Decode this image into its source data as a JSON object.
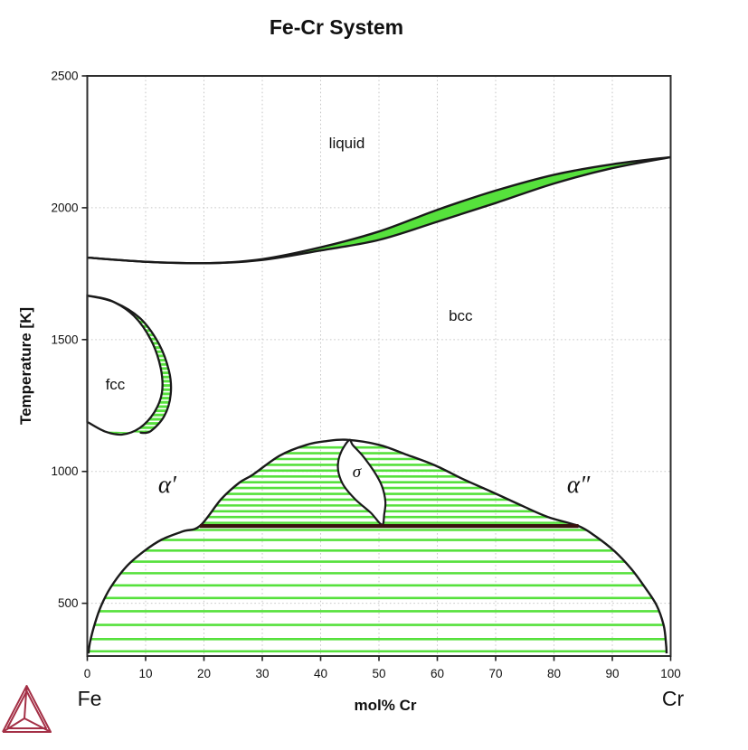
{
  "watermark": {
    "logo_icon": "thermo-calc-triangle-logo",
    "logo_color": "#a43046"
  },
  "chart_data": {
    "type": "line",
    "subtype": "binary-phase-diagram",
    "title": "Fe-Cr System",
    "xlabel": "mol% Cr",
    "ylabel": "Temperature [K]",
    "x_endmember_left": "Fe",
    "x_endmember_right": "Cr",
    "xlim": [
      0,
      100
    ],
    "ylim": [
      300,
      2500
    ],
    "x_ticks": [
      0,
      10,
      20,
      30,
      40,
      50,
      60,
      70,
      80,
      90,
      100
    ],
    "y_ticks": [
      500,
      1000,
      1500,
      2000,
      2500
    ],
    "grid": true,
    "legend_position": "none",
    "colors": {
      "two_phase_green": "#56e13c",
      "phase_boundary": "#1a1a1a",
      "eutectoid_line": "#38120c",
      "gridline": "#c7c7c7",
      "frame": "#2e2e2e"
    },
    "phase_labels": [
      {
        "text": "liquid",
        "x": 44.5,
        "y": 2246,
        "kind": "sans",
        "size": 17
      },
      {
        "text": "bcc",
        "x": 64,
        "y": 1592,
        "kind": "sans",
        "size": 17
      },
      {
        "text": "fcc",
        "x": 4.8,
        "y": 1332,
        "kind": "sans",
        "size": 17
      },
      {
        "text": "α′",
        "x": 13.7,
        "y": 952,
        "kind": "greek",
        "size": 27
      },
      {
        "text": "σ",
        "x": 46.2,
        "y": 1002,
        "kind": "greek",
        "size": 19
      },
      {
        "text": "α″",
        "x": 84.2,
        "y": 952,
        "kind": "greek",
        "size": 27
      }
    ],
    "series": [
      {
        "name": "liquidus",
        "points": [
          [
            0,
            1811
          ],
          [
            10,
            1795
          ],
          [
            21,
            1790
          ],
          [
            30,
            1805
          ],
          [
            40,
            1850
          ],
          [
            50,
            1910
          ],
          [
            60,
            1992
          ],
          [
            70,
            2065
          ],
          [
            80,
            2125
          ],
          [
            90,
            2165
          ],
          [
            100,
            2192
          ]
        ]
      },
      {
        "name": "solidus",
        "points": [
          [
            0,
            1811
          ],
          [
            10,
            1795
          ],
          [
            21,
            1790
          ],
          [
            30,
            1802
          ],
          [
            40,
            1838
          ],
          [
            50,
            1878
          ],
          [
            60,
            1947
          ],
          [
            70,
            2018
          ],
          [
            80,
            2092
          ],
          [
            90,
            2150
          ],
          [
            100,
            2192
          ]
        ]
      },
      {
        "name": "fcc_gamma_loop_inner",
        "points": [
          [
            0,
            1667
          ],
          [
            4,
            1648
          ],
          [
            8,
            1590
          ],
          [
            11,
            1495
          ],
          [
            12.6,
            1390
          ],
          [
            12.8,
            1300
          ],
          [
            11.5,
            1225
          ],
          [
            9,
            1165
          ],
          [
            6,
            1140
          ],
          [
            3,
            1152
          ],
          [
            0,
            1188
          ]
        ]
      },
      {
        "name": "fcc_gamma_loop_outer",
        "points": [
          [
            0,
            1667
          ],
          [
            4.5,
            1643
          ],
          [
            9,
            1582
          ],
          [
            12.2,
            1487
          ],
          [
            14,
            1382
          ],
          [
            14.3,
            1292
          ],
          [
            13.2,
            1210
          ],
          [
            10.8,
            1152
          ],
          [
            9,
            1147
          ]
        ]
      },
      {
        "name": "miscibility_gap_boundary",
        "points": [
          [
            0.2,
            310
          ],
          [
            0.5,
            355
          ],
          [
            1.3,
            423
          ],
          [
            2.4,
            492
          ],
          [
            4,
            560
          ],
          [
            6.7,
            639
          ],
          [
            9.7,
            697
          ],
          [
            12.8,
            742
          ],
          [
            16.4,
            773
          ],
          [
            19.3,
            793
          ],
          [
            23,
            896
          ],
          [
            26.1,
            958
          ],
          [
            28.4,
            988
          ],
          [
            33,
            1060
          ],
          [
            37.6,
            1101
          ],
          [
            41,
            1115
          ],
          [
            44.5,
            1120
          ],
          [
            50,
            1101
          ],
          [
            54.7,
            1064
          ],
          [
            59.6,
            1023
          ],
          [
            64.7,
            968
          ],
          [
            69.6,
            920
          ],
          [
            74.7,
            868
          ],
          [
            79,
            827
          ],
          [
            84.2,
            793
          ],
          [
            87,
            756
          ],
          [
            90.4,
            697
          ],
          [
            93.3,
            629
          ],
          [
            95.6,
            560
          ],
          [
            97.6,
            492
          ],
          [
            98.8,
            416
          ],
          [
            99.2,
            348
          ],
          [
            99.3,
            310
          ]
        ]
      },
      {
        "name": "sigma_boundary",
        "closed": true,
        "points": [
          [
            44.9,
            1119
          ],
          [
            43.6,
            1078
          ],
          [
            43,
            1035
          ],
          [
            43.1,
            992
          ],
          [
            44,
            945
          ],
          [
            46,
            893
          ],
          [
            48.6,
            843
          ],
          [
            50.5,
            798
          ],
          [
            50.9,
            838
          ],
          [
            51.1,
            885
          ],
          [
            50.5,
            945
          ],
          [
            49.1,
            1002
          ],
          [
            47.1,
            1062
          ],
          [
            45.5,
            1100
          ]
        ]
      },
      {
        "name": "eutectoid_line",
        "style": "eutectoid",
        "points": [
          [
            19.3,
            793
          ],
          [
            84.2,
            793
          ]
        ]
      }
    ],
    "tie_lines": {
      "lower_gap_T": [
        778,
        740,
        700,
        658,
        614,
        568,
        520,
        470,
        418,
        364,
        318
      ],
      "upper_gap": {
        "from": 805,
        "to": 1105,
        "step": 22
      },
      "fcc_sliver": {
        "from": 1150,
        "to": 1600,
        "step": 16
      }
    },
    "key_values": {
      "fe_melting_K": 1811,
      "cr_melting_K": 2192,
      "liquidus_minimum": [
        21,
        1790
      ],
      "gamma_loop_top_K": 1667,
      "gamma_loop_bottom_K": 1188,
      "miscibility_gap_apex": [
        44.5,
        1120
      ],
      "eutectoid_T_K": 793,
      "sigma_range_molpct": [
        43,
        51
      ]
    }
  }
}
